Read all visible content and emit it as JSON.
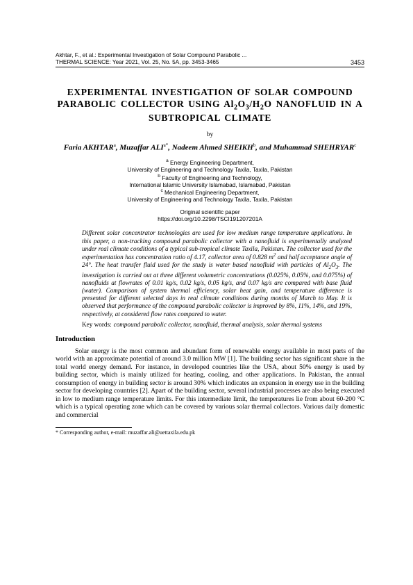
{
  "header": {
    "line1": "Akhtar, F., et al.: Experimental Investigation of Solar Compound Parabolic ...",
    "line2": "THERMAL SCIENCE: Year 2021, Vol. 25, No. 5A, pp. 3453-3465",
    "page_number": "3453"
  },
  "title_html": "EXPERIMENTAL INVESTIGATION OF SOLAR COMPOUND PARABOLIC COLLECTOR USING Al<span class='sub'>2</span>O<span class='sub'>3</span>/H<span class='sub'>2</span>O NANOFLUID IN A SUBTROPICAL CLIMATE",
  "by": "by",
  "authors_html": "Faria AKHTAR<span class='sup'>a</span>, Muzaffar ALI<span class='sup'>a*</span>, Nadeem Ahmed SHEIKH<span class='sup'>b</span>, and Muhammad SHEHRYAR<span class='sup'>c</span>",
  "affiliations_html": "<span class='sup'>a</span> Energy Engineering Department,<br>University of Engineering and Technology Taxila, Taxila, Pakistan<br><span class='sup'>b</span> Faculty of Engineering and Technology,<br>International Islamic University Islamabad, Islamabad, Pakistan<br><span class='sup'>c</span> Mechanical Engineering Department,<br>University of Engineering and Technology Taxila, Taxila, Pakistan",
  "paper_type_html": "Original scientific paper<br>https://doi.org/10.2298/TSCI191207201A",
  "abstract_html": "Different solar concentrator technologies are used for low medium range temperature applications. In this paper, a non-tracking compound parabolic collector with a nanofluid is experimentally analyzed under real climate conditions of a typical sub-tropical climate Taxila, Pakistan. The collector used for the experimentation has concentration ratio of 4.17, collector area of 0.828 m<span class='sup2'>2</span> and half acceptance angle of 24°. The heat transfer fluid used for the study is water based nanofluid with particles of Al<span class='sub'>2</span>O<span class='sub'>3</span>. The investigation is carried out at three different volumetric concentrations (0.025%, 0.05%, and 0.075%) of nanofluids at flowrates of 0.01 kg/s, 0.02 kg/s, 0.05 kg/s, and 0.07 kg/s are compared with base fluid (water). Comparison of system thermal efficiency, solar heat gain, and temperature difference is presented for different selected days in real climate conditions during months of March to May. It is observed that performance of the compound parabolic collector is improved by 8%, 11%, 14%, and 19%, respectively, at considered flow rates compared to water.",
  "keywords_label": "Key words:",
  "keywords_body": "compound parabolic collector, nanofluid, thermal analysis, solar thermal systems",
  "section_heading": "Introduction",
  "body_html": "Solar energy is the most common and abundant form of renewable energy available in most parts of the world with an approximate potential of around 3.0 million MW [1]. The building sector has significant share in the total world energy demand. For instance, in developed countries like the USA, about 50% energy is used by building sector, which is mainly utilized for heating, cooling, and other applications. In Pakistan, the annual consumption of energy in building sector is around 30% which indicates an expansion in energy use in the building sector for developing countries [2]. Apart of the building sector, several industrial processes are also being executed in low to medium range temperature limits. For this intermediate limit, the temperatures lie from about 60-200 °C which is a typical operating zone which can be covered by various solar thermal collectors. Various daily domestic and commercial",
  "footnote": "* Corresponding author, e-mail: muzaffar.ali@uettaxila.edu.pk"
}
